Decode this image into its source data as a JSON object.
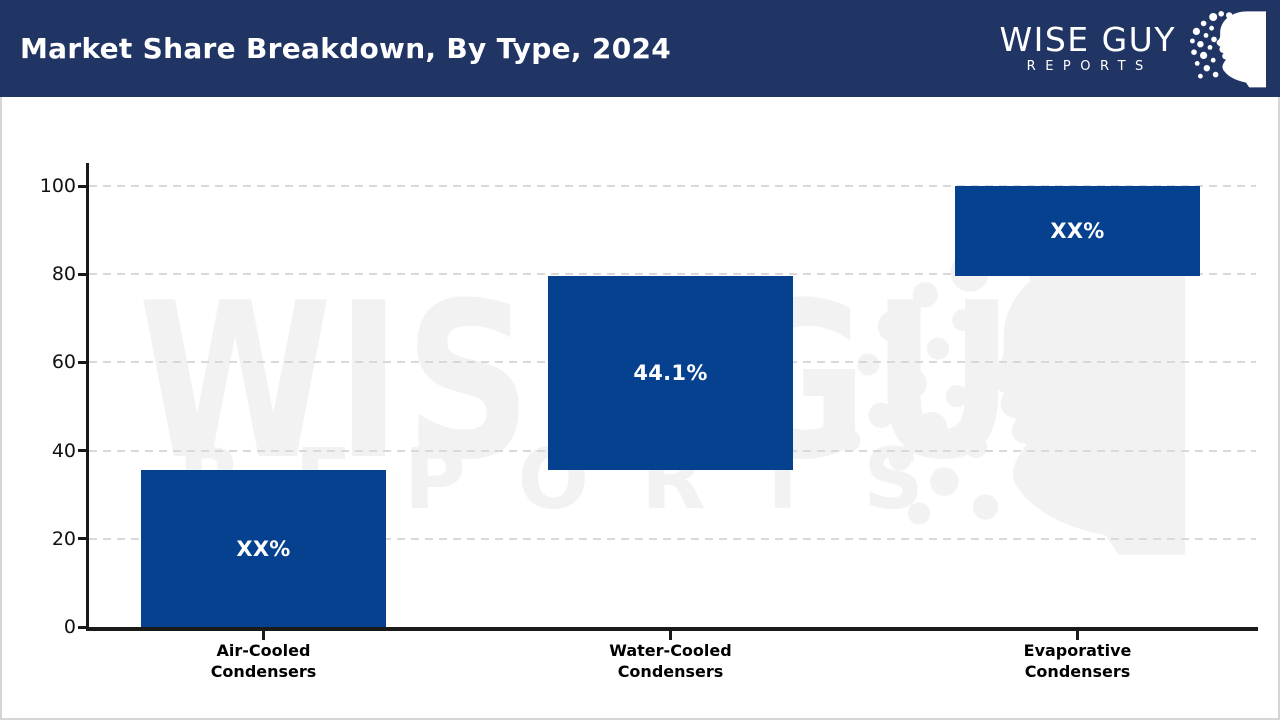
{
  "header": {
    "title": "Market Share Breakdown, By Type, 2024",
    "logo": {
      "line1": "WISE GUY",
      "line2": "REPORTS"
    }
  },
  "watermark": {
    "line1": "WISE GUY",
    "line2": "REPORTS"
  },
  "chart_data": {
    "type": "bar",
    "subtype": "floating-segment (stacked waterfall of market shares)",
    "title": "Market Share Breakdown, By Type, 2024",
    "categories": [
      "Air-Cooled Condensers",
      "Water-Cooled Condensers",
      "Evaporative Condensers"
    ],
    "category_lines": [
      [
        "Air-Cooled",
        "Condensers"
      ],
      [
        "Water-Cooled",
        "Condensers"
      ],
      [
        "Evaporative",
        "Condensers"
      ]
    ],
    "bars": [
      {
        "category": "Air-Cooled Condensers",
        "start": 0,
        "end": 35.5,
        "span": 35.5,
        "value_label": "XX%"
      },
      {
        "category": "Water-Cooled Condensers",
        "start": 35.5,
        "end": 79.6,
        "span": 44.1,
        "value_label": "44.1%"
      },
      {
        "category": "Evaporative Condensers",
        "start": 79.6,
        "end": 100,
        "span": 20.4,
        "value_label": "XX%"
      }
    ],
    "yticks": [
      0,
      20,
      40,
      60,
      80,
      100
    ],
    "ylim": [
      0,
      105
    ],
    "xlabel": "",
    "ylabel": "",
    "grid": "horizontal-dashed",
    "legend": "none",
    "bar_color": "#05418f",
    "bar_label_color": "#ffffff"
  },
  "colors": {
    "header_navy": "#213564",
    "bar_blue": "#05418f",
    "axis_black": "#1a1a1a",
    "gridline_gray": "#d9d9d9",
    "watermark_gray": "#f2f2f2",
    "border_gray": "#d5d5d5",
    "background": "#ffffff",
    "title_text": "#ffffff"
  }
}
